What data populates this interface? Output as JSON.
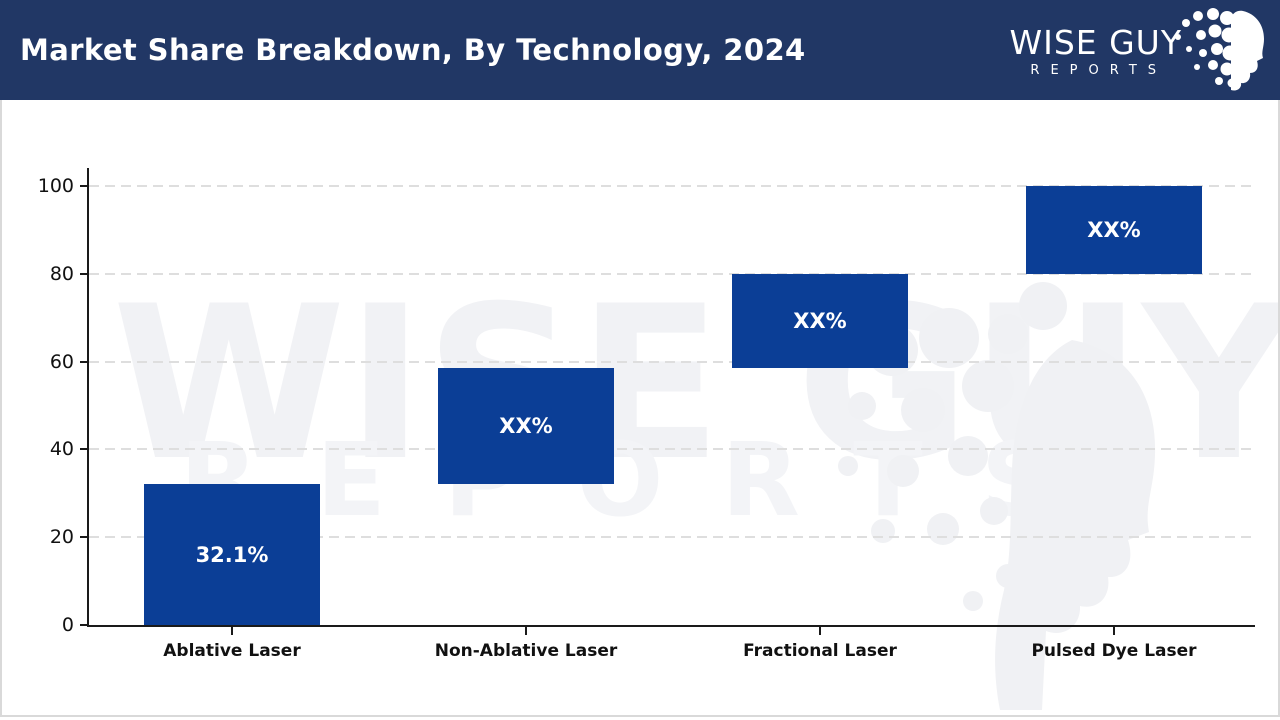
{
  "header": {
    "title": "Market Share Breakdown, By Technology, 2024",
    "logo": {
      "wordmark": "WISE GUY",
      "subtitle": "REPORTS"
    }
  },
  "watermark": {
    "wordmark": "WISE GUY",
    "subtitle": "REPORTS"
  },
  "chart_data": {
    "type": "bar",
    "subtype": "waterfall",
    "title": "Market Share Breakdown, By Technology, 2024",
    "categories": [
      "Ablative Laser",
      "Non-Ablative Laser",
      "Fractional Laser",
      "Pulsed Dye Laser"
    ],
    "segments": [
      {
        "category": "Ablative Laser",
        "start": 0,
        "end": 32.1,
        "label": "32.1%"
      },
      {
        "category": "Non-Ablative Laser",
        "start": 32.1,
        "end": 58.5,
        "label": "XX%"
      },
      {
        "category": "Fractional Laser",
        "start": 58.5,
        "end": 80.0,
        "label": "XX%"
      },
      {
        "category": "Pulsed Dye Laser",
        "start": 80.0,
        "end": 100.0,
        "label": "XX%"
      }
    ],
    "y_ticks": [
      0,
      20,
      40,
      60,
      80,
      100
    ],
    "ylim": [
      0,
      104
    ],
    "xlabel": "",
    "ylabel": "",
    "grid": "horizontal-dashed",
    "legend": "none"
  },
  "colors": {
    "header_bg": "#213765",
    "bar": "#0b3e96",
    "bar_label": "#ffffff",
    "axis": "#1a1a1a",
    "grid": "#dedede",
    "watermark": "#f1f2f5",
    "border": "#d9d9d9"
  }
}
